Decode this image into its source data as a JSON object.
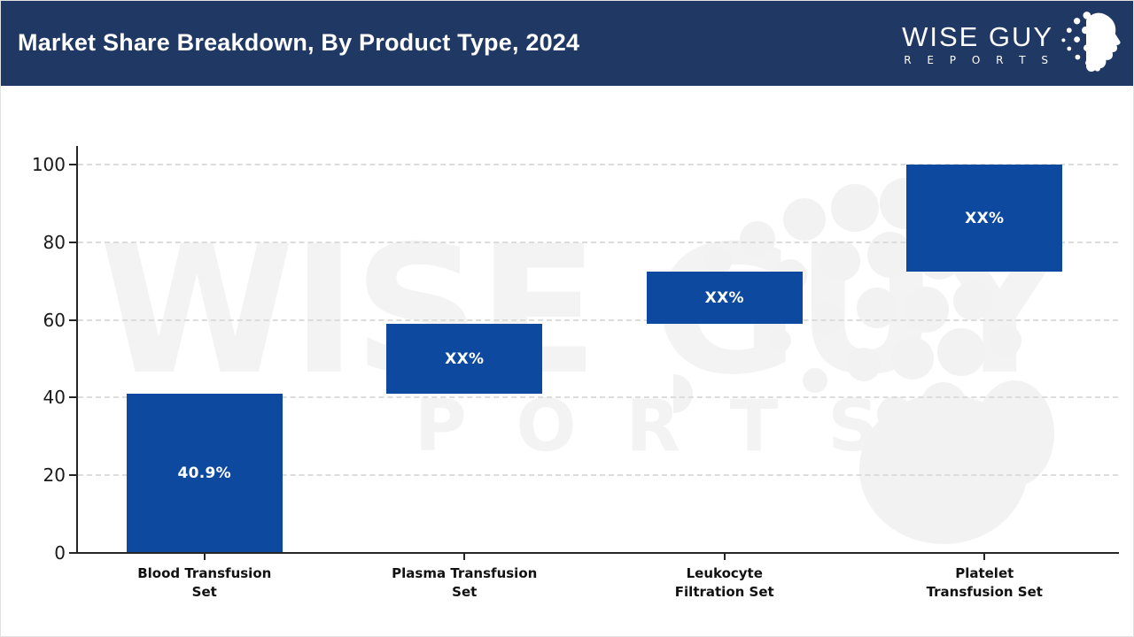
{
  "header": {
    "title": "Market Share Breakdown, By Product Type, 2024",
    "background": "#203864",
    "logo": {
      "name": "WISE GUY",
      "sub": "R E P O R T S"
    }
  },
  "watermark": {
    "big": "WISE GUY",
    "sub": "P O R T S"
  },
  "chart_data": {
    "type": "bar",
    "variant": "waterfall",
    "title": "Market Share Breakdown, By Product Type, 2024",
    "xlabel": "",
    "ylabel": "",
    "ylim": [
      0,
      100
    ],
    "yticks": [
      0,
      20,
      40,
      60,
      80,
      100
    ],
    "grid": {
      "horizontal": true,
      "style": "dashed",
      "color": "#dcdcdc"
    },
    "legend": "none",
    "bar_color": "#0d4a9f",
    "value_label_color": "#ffffff",
    "categories": [
      "Blood Transfusion Set",
      "Plasma Transfusion Set",
      "Leukocyte Filtration Set",
      "Platelet Transfusion Set"
    ],
    "category_lines": [
      [
        "Blood Transfusion",
        "Set"
      ],
      [
        "Plasma Transfusion",
        "Set"
      ],
      [
        "Leukocyte",
        "Filtration Set"
      ],
      [
        "Platelet",
        "Transfusion Set"
      ]
    ],
    "bars": [
      {
        "category": "Blood Transfusion Set",
        "label": "40.9%",
        "start": 0,
        "end": 40.9
      },
      {
        "category": "Plasma Transfusion Set",
        "label": "XX%",
        "start": 40.9,
        "end": 59
      },
      {
        "category": "Leukocyte Filtration Set",
        "label": "XX%",
        "start": 59,
        "end": 72.4
      },
      {
        "category": "Platelet Transfusion Set",
        "label": "XX%",
        "start": 72.4,
        "end": 100
      }
    ]
  }
}
